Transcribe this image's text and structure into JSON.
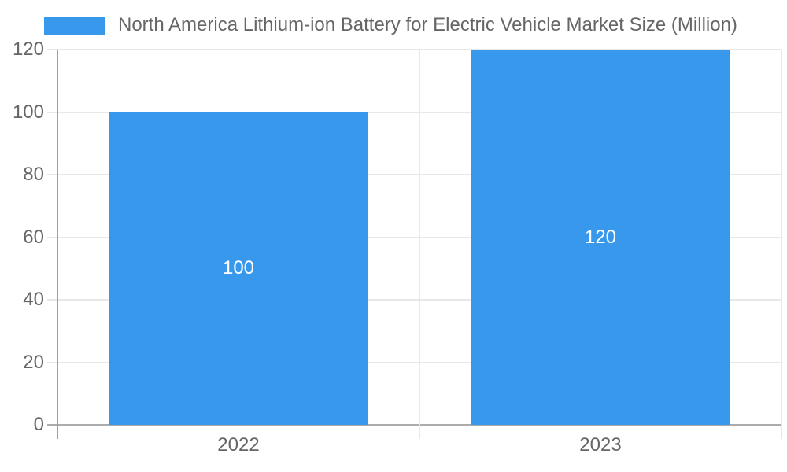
{
  "legend": {
    "label": "North America Lithium-ion Battery for Electric Vehicle Market Size (Million)"
  },
  "colors": {
    "bar": "#3898EC",
    "axis_line": "#A0A0A0",
    "baseline": "#ACACAC",
    "gridline": "#E8E8E8",
    "tick_text": "#666666",
    "data_label_text": "#FFFFFF",
    "background": "#FFFFFF"
  },
  "chart_data": {
    "type": "bar",
    "title": "North America Lithium-ion Battery for Electric Vehicle Market Size (Million)",
    "categories": [
      "2022",
      "2023"
    ],
    "values": [
      100,
      120
    ],
    "series": [
      {
        "name": "North America Lithium-ion Battery for Electric Vehicle Market Size (Million)",
        "values": [
          100,
          120
        ]
      }
    ],
    "data_labels": [
      "100",
      "120"
    ],
    "xlabel": "",
    "ylabel": "",
    "ylim": [
      0,
      120
    ],
    "yticks": [
      0,
      20,
      40,
      60,
      80,
      100,
      120
    ],
    "grid": true,
    "legend_position": "top-left",
    "data_label_position": "center"
  }
}
